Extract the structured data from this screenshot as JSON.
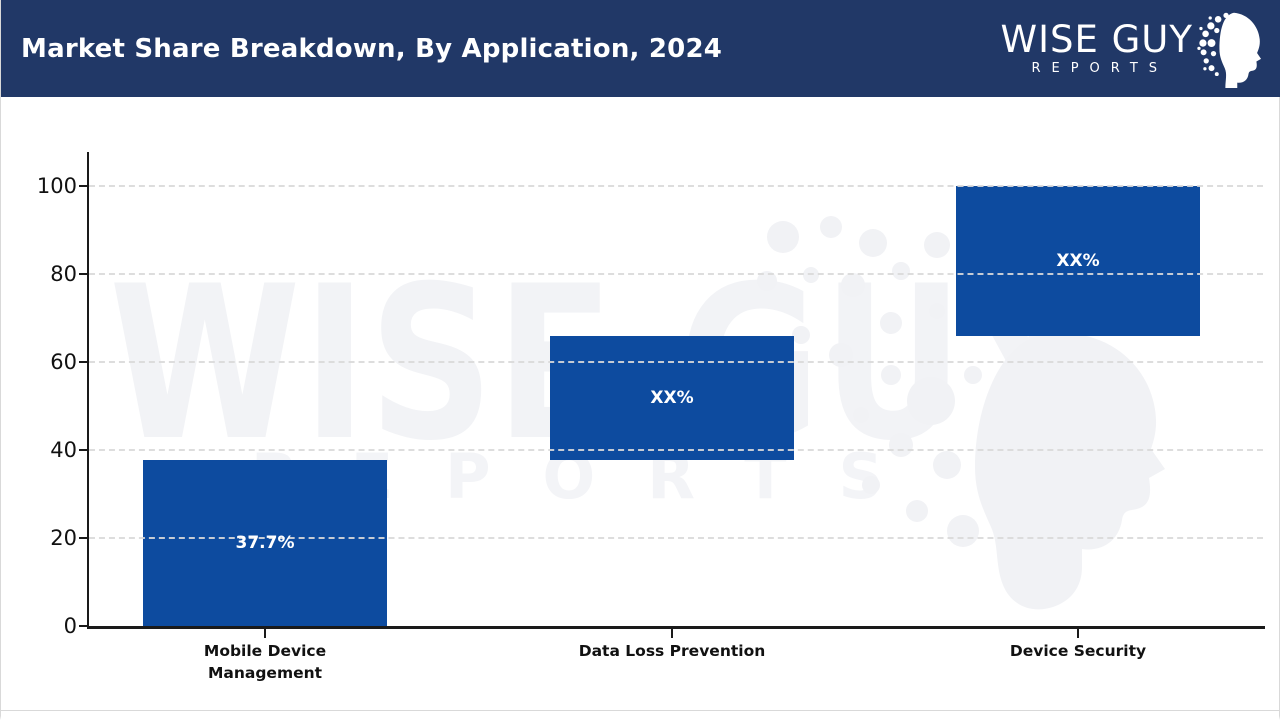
{
  "header": {
    "title": "Market Share Breakdown, By Application, 2024",
    "logo": {
      "line1": "WISE GUY",
      "line2": "REPORTS"
    }
  },
  "watermark": {
    "line1": "WISE GUY",
    "line2": "REPORTS"
  },
  "chart_data": {
    "type": "bar",
    "subtype": "floating-segment-waterfall",
    "title": "Market Share Breakdown, By Application, 2024",
    "categories": [
      "Mobile Device Management",
      "Data Loss Prevention",
      "Device Security"
    ],
    "series": [
      {
        "name": "Market share (%)",
        "segments": [
          {
            "category": "Mobile Device Management",
            "from": 0,
            "to": 37.7,
            "label": "37.7%"
          },
          {
            "category": "Data Loss Prevention",
            "from": 37.7,
            "to": 66,
            "label": "XX%"
          },
          {
            "category": "Device Security",
            "from": 66,
            "to": 100,
            "label": "XX%"
          }
        ]
      }
    ],
    "xlabel": "",
    "ylabel": "",
    "ylim": [
      0,
      100
    ],
    "yticks": [
      0,
      20,
      40,
      60,
      80,
      100
    ],
    "grid": "horizontal-dashed",
    "legend": "none",
    "colors": {
      "bar": "#0d4b9f",
      "bar_label": "#ffffff",
      "grid": "#dcdcdc",
      "axis": "#1a1a1a",
      "header_bg": "#213867",
      "watermark": "#f2f3f6"
    }
  }
}
